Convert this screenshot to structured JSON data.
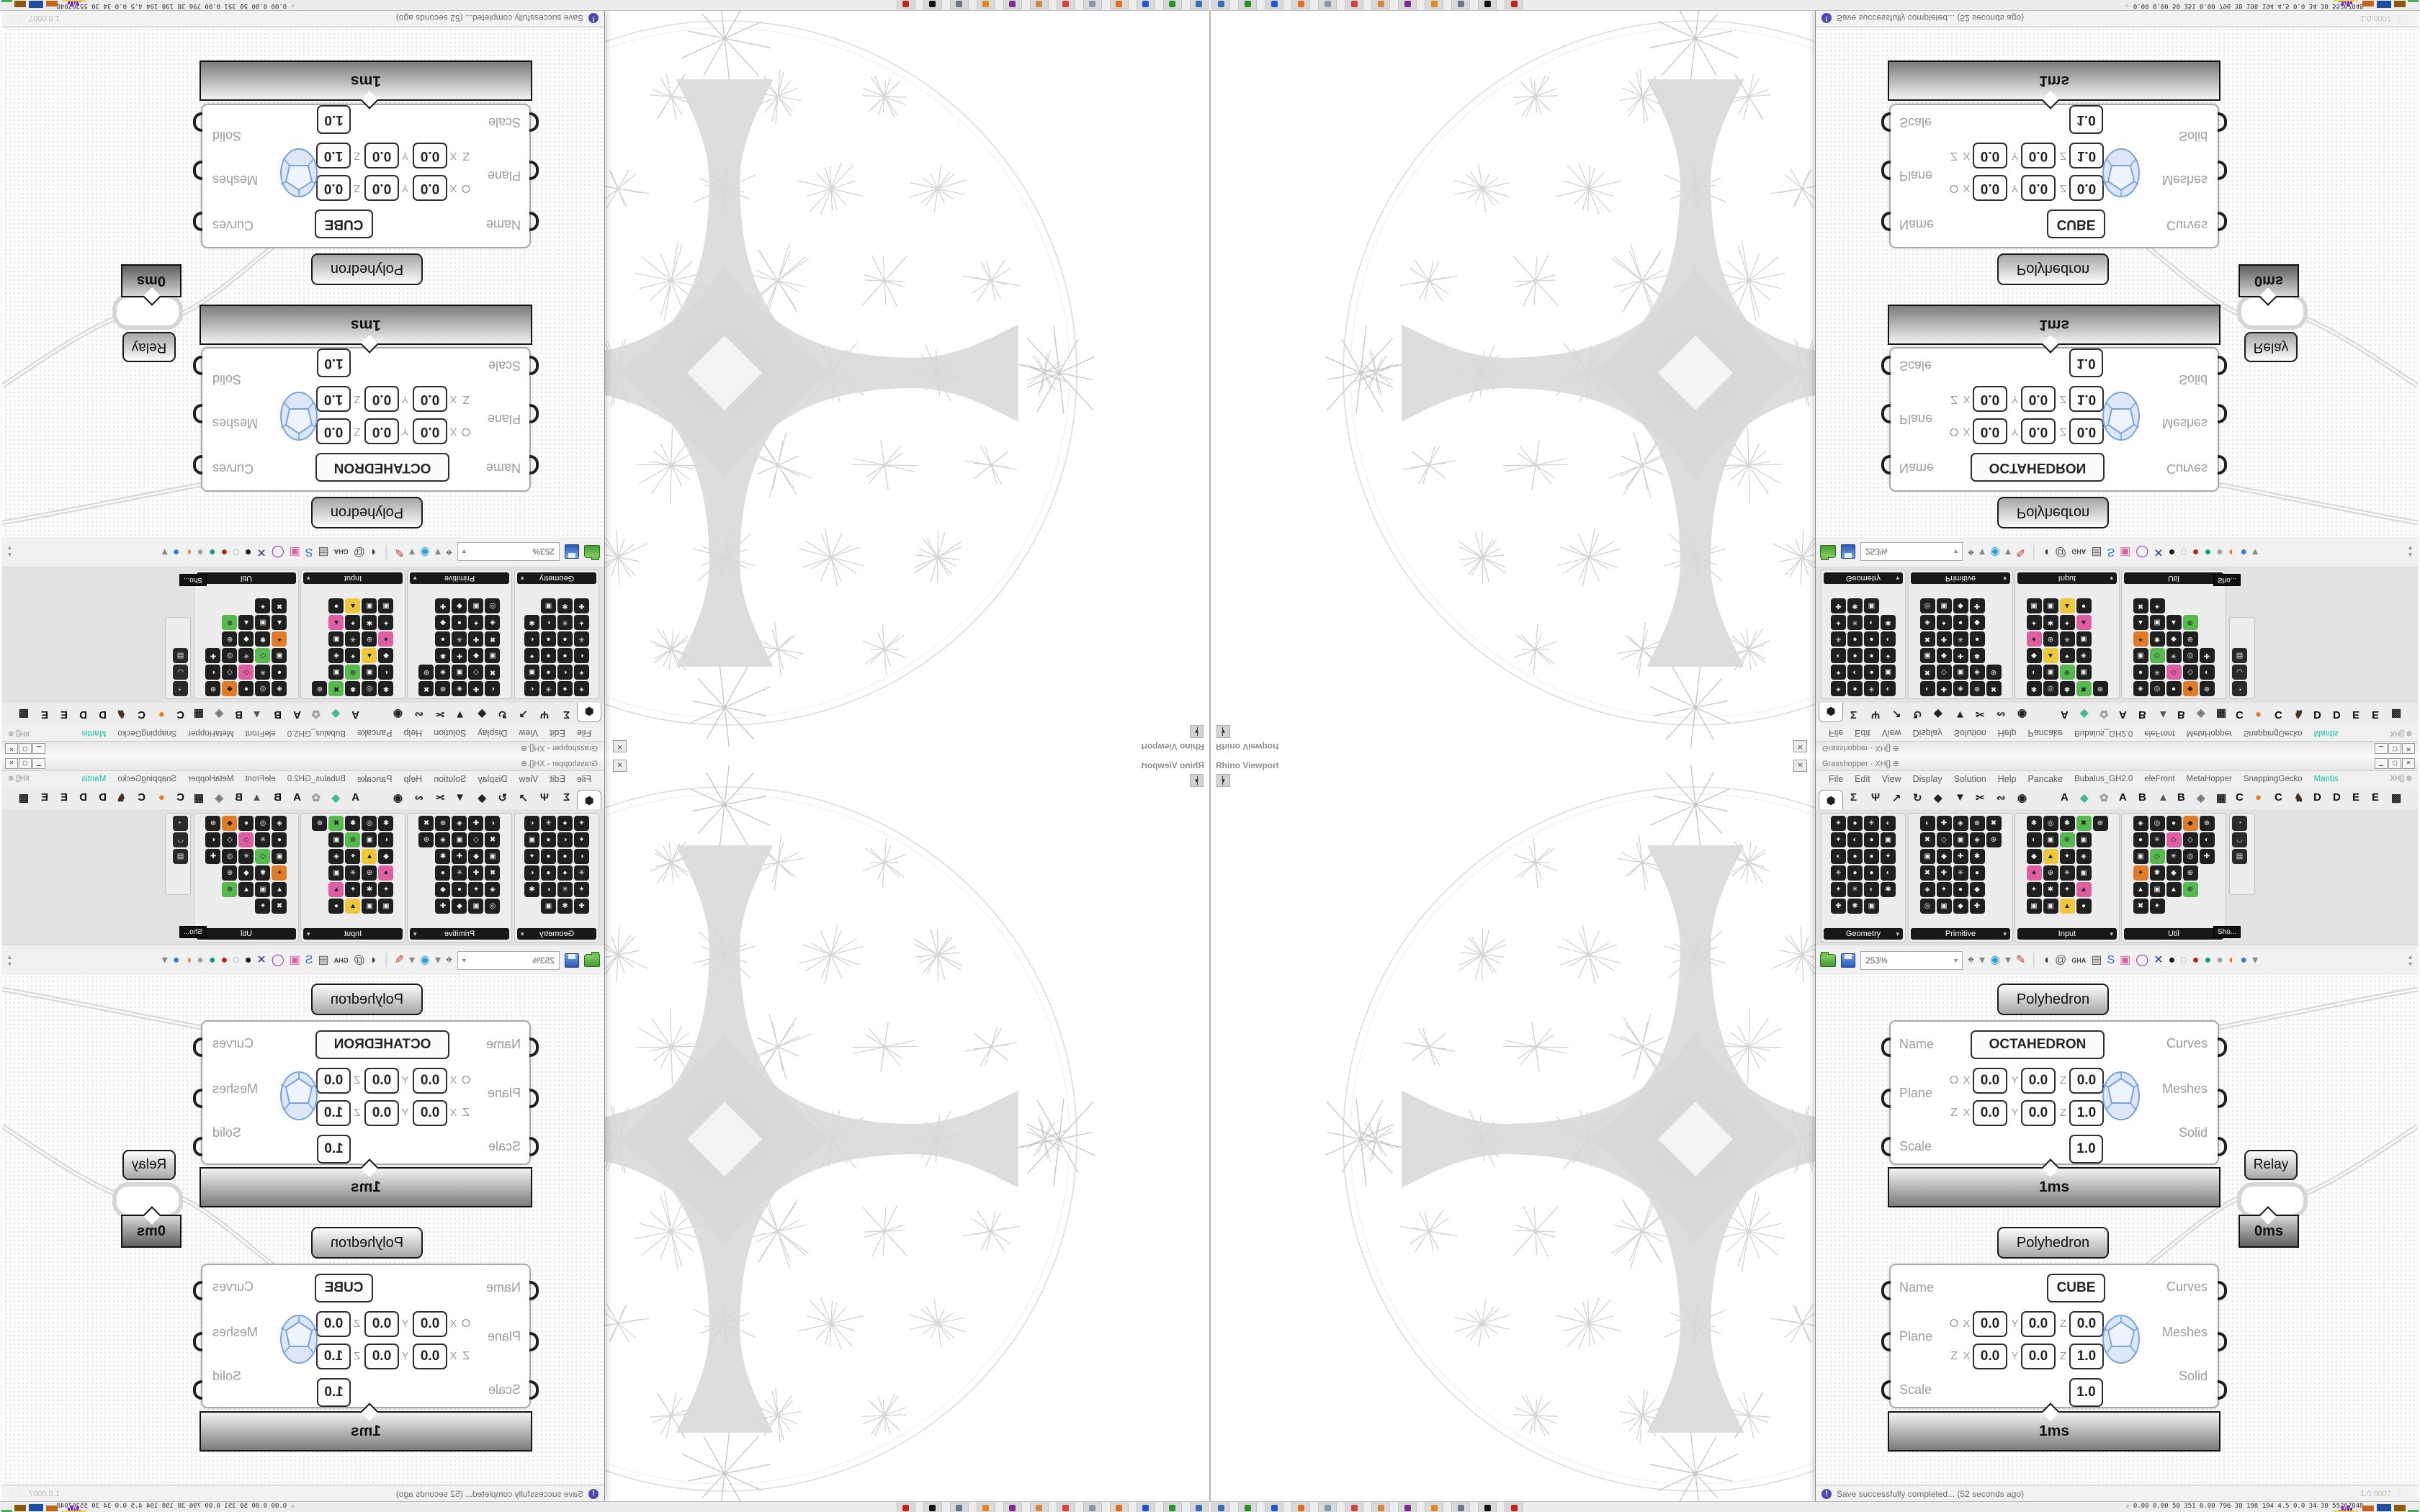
{
  "desktop": {
    "panel": {
      "app_icons": [
        "monitor",
        "android",
        "emulator-64",
        "firefox",
        "calculator",
        "gamepad",
        "gamepad-2",
        "owl",
        "gears",
        "printer",
        "notes",
        "media-red"
      ],
      "stats_prefix": "☆",
      "stats_text": "0.00 0.00  50  351 0.00 796  38  198 194 4.5  0.0  34  30 55267048"
    }
  },
  "rhino": {
    "title": "Rhino Viewport"
  },
  "gh": {
    "title": "Grasshopper - XH[].⊕",
    "window_buttons": [
      "minimize",
      "maximize",
      "close"
    ],
    "menu": [
      "File",
      "Edit",
      "View",
      "Display",
      "Solution",
      "Help",
      "Pancake",
      "Bubalus_GH2.0",
      "eleFront",
      "MetaHopper",
      "SnappingGecko",
      "Mantis"
    ],
    "menu_right": "XH[].⊕",
    "tab_icons": [
      "params",
      "maths",
      "sets",
      "vector",
      "curve",
      "surface",
      "mesh",
      "intersect",
      "transform",
      "display"
    ],
    "plugin_tabs": [
      "A",
      "gem-icon",
      "flower-icon",
      "A",
      "B",
      "mountain-icon",
      "B",
      "shield-icon",
      "grid-icon",
      "C",
      "dot-icon",
      "C",
      "bird-icon",
      "D",
      "D",
      "E",
      "E",
      "grid2-icon"
    ],
    "palette_groups": [
      {
        "label": "Geometry",
        "rows": [
          4,
          4,
          4,
          4,
          4,
          3
        ]
      },
      {
        "label": "Primitive",
        "rows": [
          5,
          5,
          4,
          4,
          4,
          4
        ]
      },
      {
        "label": "Input",
        "rows": [
          5,
          4,
          4,
          4,
          4,
          4
        ]
      },
      {
        "label": "Util",
        "rows": [
          5,
          5,
          5,
          4,
          4,
          2
        ]
      }
    ],
    "show_tooltip": "Sho...",
    "toolbar": {
      "zoom": "253%"
    },
    "status": {
      "message": "Save successfully completed... (52 seconds ago)",
      "version": "1.0.0007"
    },
    "canvas": {
      "components": [
        {
          "label": "Polyhedron",
          "name_label": "Name",
          "plane_label": "Plane",
          "scale_label": "Scale",
          "name_value": "OCTAHEDRON",
          "scale_value": "1.0",
          "time": "1ms",
          "outputs": [
            "Curves",
            "Meshes",
            "Solid"
          ],
          "plane_rows": [
            {
              "axis": "O",
              "x_label": "X",
              "x": "0.0",
              "y_label": "Y",
              "y": "0.0",
              "z_label": "Z",
              "z": "0.0"
            },
            {
              "axis": "Z",
              "x_label": "X",
              "x": "0.0",
              "y_label": "Y",
              "y": "0.0",
              "z_label": "Z",
              "z": "1.0"
            }
          ]
        },
        {
          "label": "Polyhedron",
          "name_label": "Name",
          "plane_label": "Plane",
          "scale_label": "Scale",
          "name_value": "CUBE",
          "scale_value": "1.0",
          "time": "1ms",
          "outputs": [
            "Curves",
            "Meshes",
            "Solid"
          ],
          "plane_rows": [
            {
              "axis": "O",
              "x_label": "X",
              "x": "0.0",
              "y_label": "Y",
              "y": "0.0",
              "z_label": "Z",
              "z": "0.0"
            },
            {
              "axis": "Z",
              "x_label": "X",
              "x": "0.0",
              "y_label": "Y",
              "y": "0.0",
              "z_label": "Z",
              "z": "1.0"
            }
          ]
        }
      ],
      "relay": {
        "label": "Relay",
        "time": "0ms"
      }
    }
  }
}
